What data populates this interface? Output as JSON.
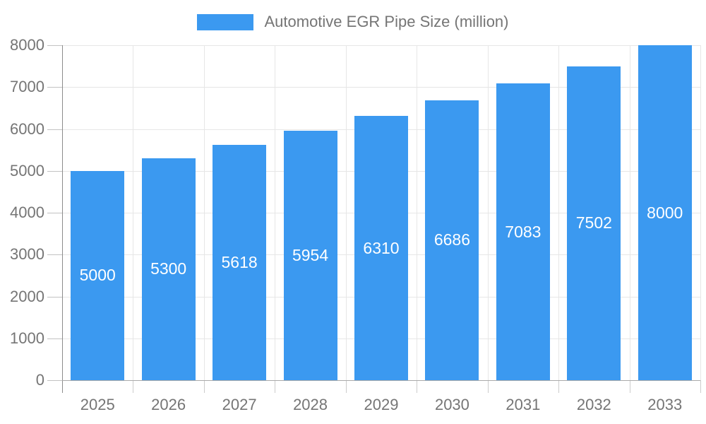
{
  "chart_data": {
    "type": "bar",
    "title": "Automotive EGR Pipe Size (million)",
    "legend": {
      "position": "top-center",
      "label": "Automotive EGR Pipe Size (million)"
    },
    "categories": [
      "2025",
      "2026",
      "2027",
      "2028",
      "2029",
      "2030",
      "2031",
      "2032",
      "2033"
    ],
    "series": [
      {
        "name": "Automotive EGR Pipe Size (million)",
        "values": [
          5000,
          5300,
          5618,
          5954,
          6310,
          6686,
          7083,
          7502,
          8000
        ]
      }
    ],
    "value_labels_shown_inside_bars": true,
    "xlabel": "",
    "ylabel": "",
    "ylim": [
      0,
      8000
    ],
    "yticks": [
      0,
      1000,
      2000,
      3000,
      4000,
      5000,
      6000,
      7000,
      8000
    ],
    "grid": "on",
    "colors": {
      "bar": "#3b99f0",
      "bar_value_text": "#ffffff",
      "axis_text": "#757575",
      "gridline": "#e6e6e6",
      "axis_line": "#8c8c8c",
      "background": "#ffffff"
    }
  }
}
